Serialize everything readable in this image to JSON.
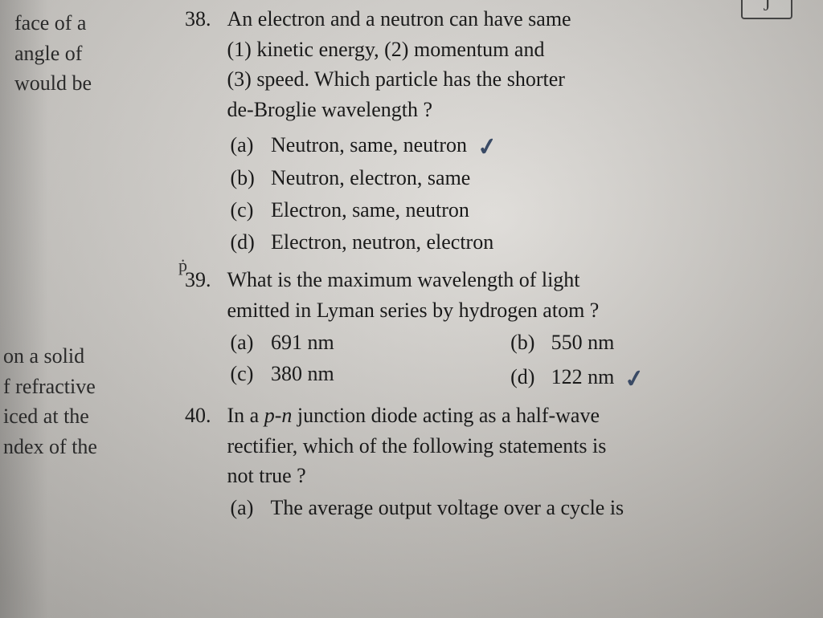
{
  "leftFrag1": {
    "l1": "face of a",
    "l2": "angle of",
    "l3": "would be"
  },
  "leftFrag2": {
    "l1": "on a solid",
    "l2": "f refractive",
    "l3": "iced at the",
    "l4": "ndex of the"
  },
  "topRight": "J",
  "q38": {
    "num": "38.",
    "stem1": "An electron and a neutron can have same",
    "stem2": "(1) kinetic energy, (2) momentum and",
    "stem3": "(3) speed. Which particle has the shorter",
    "stem4": "de-Broglie wavelength ?",
    "a": {
      "label": "(a)",
      "text": "Neutron, same, neutron"
    },
    "b": {
      "label": "(b)",
      "text": "Neutron, electron, same"
    },
    "c": {
      "label": "(c)",
      "text": "Electron, same, neutron"
    },
    "d": {
      "label": "(d)",
      "text": "Electron, neutron, electron"
    },
    "checked": "a"
  },
  "q39": {
    "num": "39.",
    "stem1": "What is the maximum wavelength of light",
    "stem2": "emitted in Lyman series by hydrogen atom ?",
    "a": {
      "label": "(a)",
      "text": "691 nm"
    },
    "b": {
      "label": "(b)",
      "text": "550 nm"
    },
    "c": {
      "label": "(c)",
      "text": "380 nm"
    },
    "d": {
      "label": "(d)",
      "text": "122 nm"
    },
    "checked": "d"
  },
  "q40": {
    "num": "40.",
    "pn": "p-n",
    "stem1a": "In a ",
    "stem1b": " junction diode acting as a half-wave",
    "stem2": "rectifier, which of the following statements is",
    "stem3": "not true ?",
    "a": {
      "label": "(a)",
      "text": "The average output voltage over a cycle is"
    }
  },
  "colors": {
    "text": "#1a1a1a",
    "check": "#3a4a65",
    "bgLight": "#e8e5e0",
    "bgDark": "#c2beb8"
  }
}
